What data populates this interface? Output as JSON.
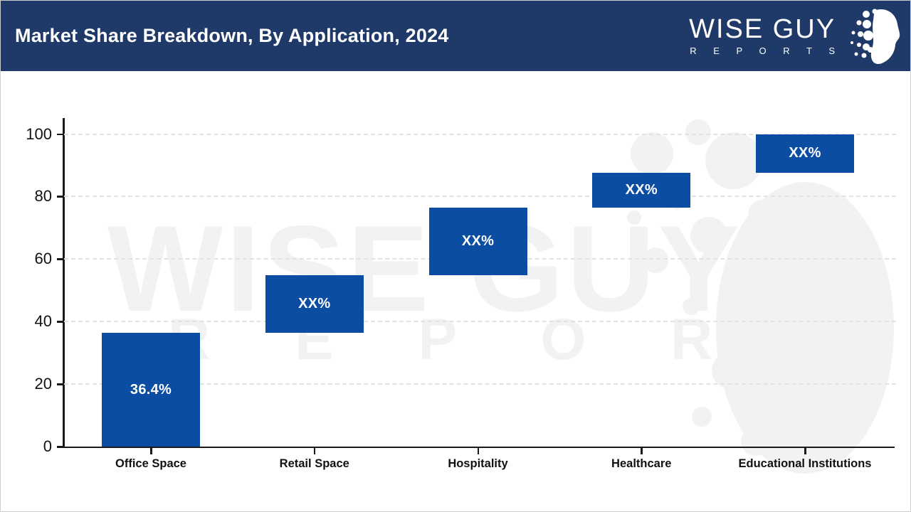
{
  "header": {
    "title": "Market Share Breakdown, By Application, 2024",
    "logo_line1": "WISE GUY",
    "logo_line2": "R E P O R T S"
  },
  "watermark": {
    "line1": "WISE GUY",
    "line2": "R E P O R T S"
  },
  "chart_data": {
    "type": "bar",
    "subtype": "waterfall",
    "title": "Market Share Breakdown, By Application, 2024",
    "categories": [
      "Office Space",
      "Retail Space",
      "Hospitality",
      "Healthcare",
      "Educational Institutions"
    ],
    "segments": [
      {
        "category": "Office Space",
        "start": 0,
        "end": 36.4,
        "label": "36.4%"
      },
      {
        "category": "Retail Space",
        "start": 36.4,
        "end": 54.8,
        "label": "XX%"
      },
      {
        "category": "Hospitality",
        "start": 54.8,
        "end": 76.4,
        "label": "XX%"
      },
      {
        "category": "Healthcare",
        "start": 76.4,
        "end": 87.6,
        "label": "XX%"
      },
      {
        "category": "Educational Institutions",
        "start": 87.6,
        "end": 100,
        "label": "XX%"
      }
    ],
    "yticks": [
      0,
      20,
      40,
      60,
      80,
      100
    ],
    "ylim": [
      0,
      105
    ],
    "xlabel": "",
    "ylabel": "",
    "grid": "horizontal-dashed",
    "legend": "none",
    "bar_color": "#0b4da2",
    "bar_label_color": "#ffffff",
    "header_color": "#1f3a68"
  }
}
